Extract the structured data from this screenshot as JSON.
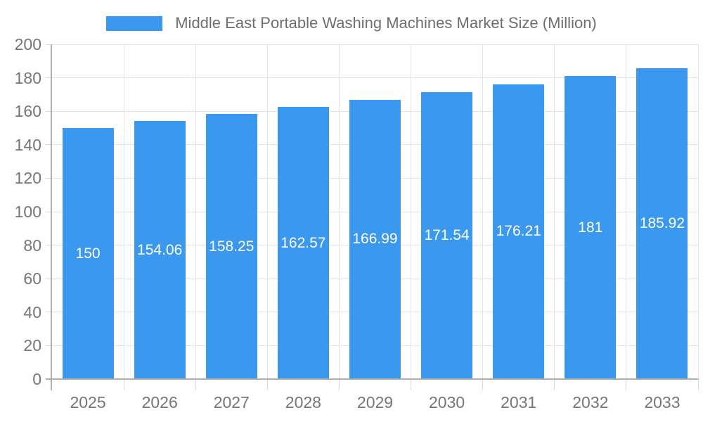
{
  "chart_data": {
    "type": "bar",
    "title": "Middle East Portable Washing Machines Market Size (Million)",
    "categories": [
      "2025",
      "2026",
      "2027",
      "2028",
      "2029",
      "2030",
      "2031",
      "2032",
      "2033"
    ],
    "values": [
      150,
      154.06,
      158.25,
      162.57,
      166.99,
      171.54,
      176.21,
      181,
      185.92
    ],
    "value_labels": [
      "150",
      "154.06",
      "158.25",
      "162.57",
      "166.99",
      "171.54",
      "176.21",
      "181",
      "185.92"
    ],
    "xlabel": "",
    "ylabel": "",
    "ylim": [
      0,
      200
    ],
    "yticks": [
      0,
      20,
      40,
      60,
      80,
      100,
      120,
      140,
      160,
      180,
      200
    ],
    "grid": true,
    "legend_position": "top-center",
    "colors": {
      "bar": "#3A99EE",
      "grid": "#E4E4E4",
      "tick": "#D9D9D9",
      "axis": "#ADADAD",
      "tick_text": "#757575",
      "title_text": "#6E6E6E",
      "bar_label_text": "#FFFFFF",
      "background": "#FFFFFF"
    }
  }
}
